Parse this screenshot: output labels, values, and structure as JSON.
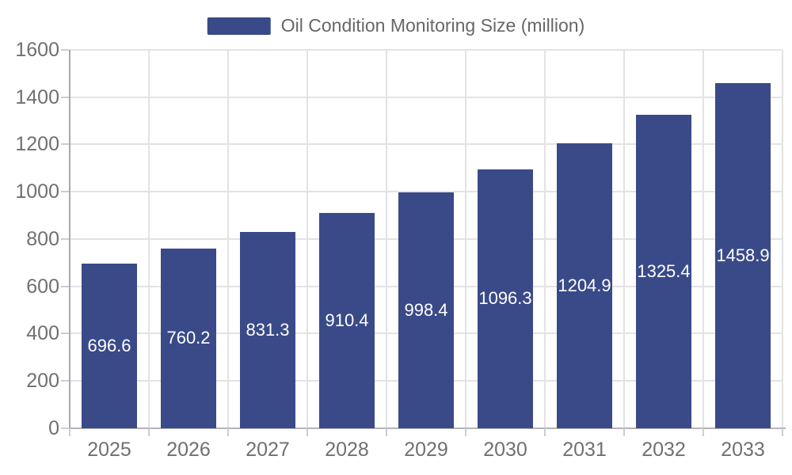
{
  "legend": {
    "label": "Oil Condition Monitoring Size (million)"
  },
  "chart_data": {
    "type": "bar",
    "title": "",
    "categories": [
      "2025",
      "2026",
      "2027",
      "2028",
      "2029",
      "2030",
      "2031",
      "2032",
      "2033"
    ],
    "series": [
      {
        "name": "Oil Condition Monitoring Size (million)",
        "values": [
          696.6,
          760.2,
          831.3,
          910.4,
          998.4,
          1096.3,
          1204.9,
          1325.4,
          1458.9
        ]
      }
    ],
    "value_labels": [
      "696.6",
      "760.2",
      "831.3",
      "910.4",
      "998.4",
      "1096.3",
      "1204.9",
      "1325.4",
      "1458.9"
    ],
    "ytick_labels": [
      "0",
      "200",
      "400",
      "600",
      "800",
      "1000",
      "1200",
      "1400",
      "1600"
    ],
    "ylim": [
      0,
      1600
    ],
    "ytick_step": 200,
    "grid": true,
    "legend_position": "top",
    "bar_color": "#3A4A88",
    "value_label_color": "#FFFFFF",
    "axis_text_color": "#707070"
  }
}
